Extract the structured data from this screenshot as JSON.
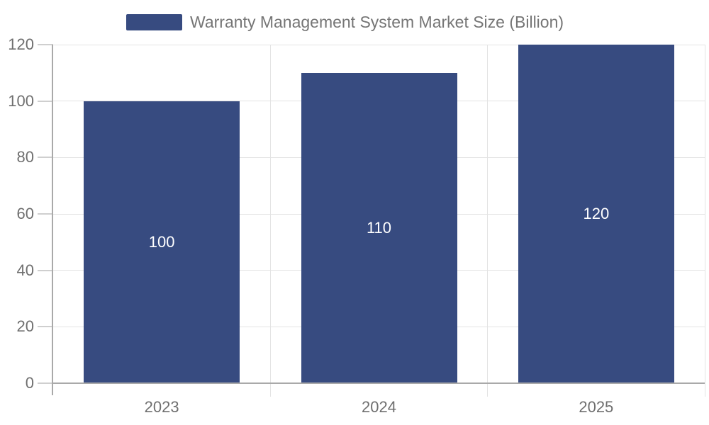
{
  "chart_data": {
    "type": "bar",
    "title": "Warranty Management System Market Size (Billion)",
    "legend": [
      "Warranty Management System Market Size (Billion)"
    ],
    "legend_position": "top",
    "categories": [
      "2023",
      "2024",
      "2025"
    ],
    "values": [
      100,
      110,
      120
    ],
    "data_labels": [
      "100",
      "110",
      "120"
    ],
    "xlabel": "",
    "ylabel": "",
    "ylim": [
      0,
      120
    ],
    "yticks": [
      0,
      20,
      40,
      60,
      80,
      100,
      120
    ],
    "grid": true,
    "colors": {
      "bar": "#374b80",
      "bar_label_text": "#ffffff",
      "axis_text": "#6f6f6f",
      "legend_text": "#757575",
      "grid_line": "#e3e3e3",
      "tick_line": "#cfcfcf",
      "axis_line": "#a9a9a9",
      "background": "#ffffff"
    }
  }
}
